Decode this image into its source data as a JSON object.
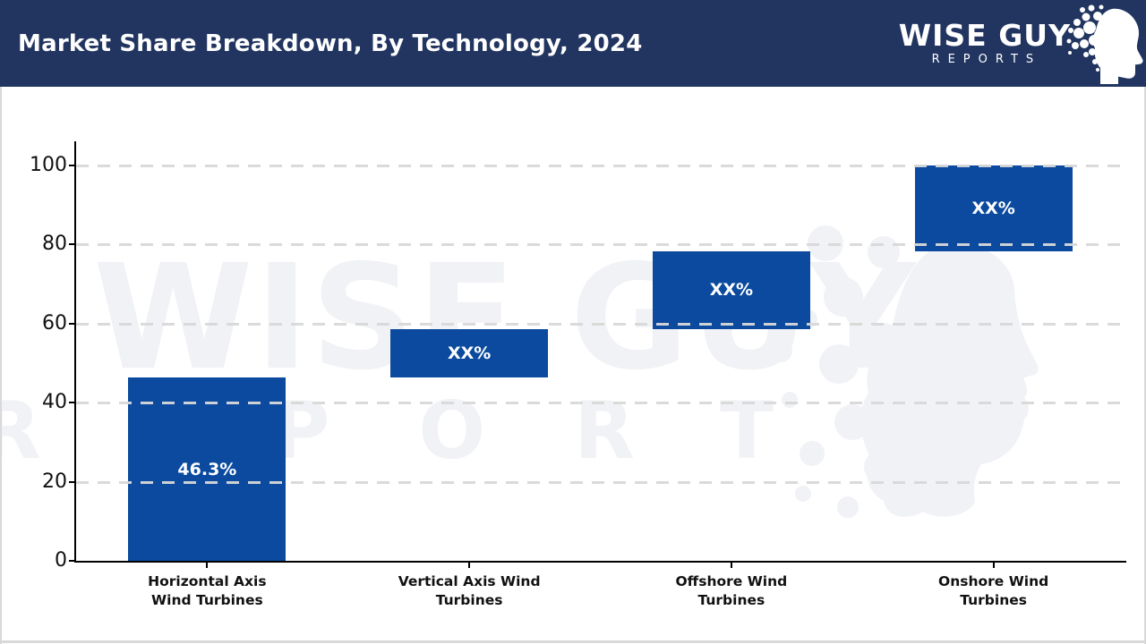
{
  "header": {
    "title": "Market Share Breakdown, By Technology, 2024",
    "logo": {
      "line1": "WISE GUY",
      "line2": "REPORTS"
    }
  },
  "watermark": {
    "line1": "WISE GUY",
    "line2": "REPORTS"
  },
  "chart_data": {
    "type": "bar",
    "subtype": "waterfall",
    "title": "Market Share Breakdown, By Technology, 2024",
    "xlabel": "",
    "ylabel": "",
    "ylim": [
      0,
      106
    ],
    "yticks": [
      0,
      20,
      40,
      60,
      80,
      100
    ],
    "grid": "dashed horizontal",
    "legend": "none",
    "bar_color": "#0b4a9e",
    "bar_label_color": "#ffffff",
    "categories": [
      "Horizontal Axis Wind Turbines",
      "Vertical Axis Wind Turbines",
      "Offshore Wind Turbines",
      "Onshore Wind Turbines"
    ],
    "category_lines": [
      [
        "Horizontal Axis",
        "Wind Turbines"
      ],
      [
        "Vertical Axis Wind",
        "Turbines"
      ],
      [
        "Offshore Wind",
        "Turbines"
      ],
      [
        "Onshore Wind",
        "Turbines"
      ]
    ],
    "segments": [
      {
        "label": "46.3%",
        "start": 0,
        "end": 46.3
      },
      {
        "label": "XX%",
        "start": 46.3,
        "end": 58.7
      },
      {
        "label": "XX%",
        "start": 58.7,
        "end": 78.3
      },
      {
        "label": "XX%",
        "start": 78.3,
        "end": 100
      }
    ]
  }
}
